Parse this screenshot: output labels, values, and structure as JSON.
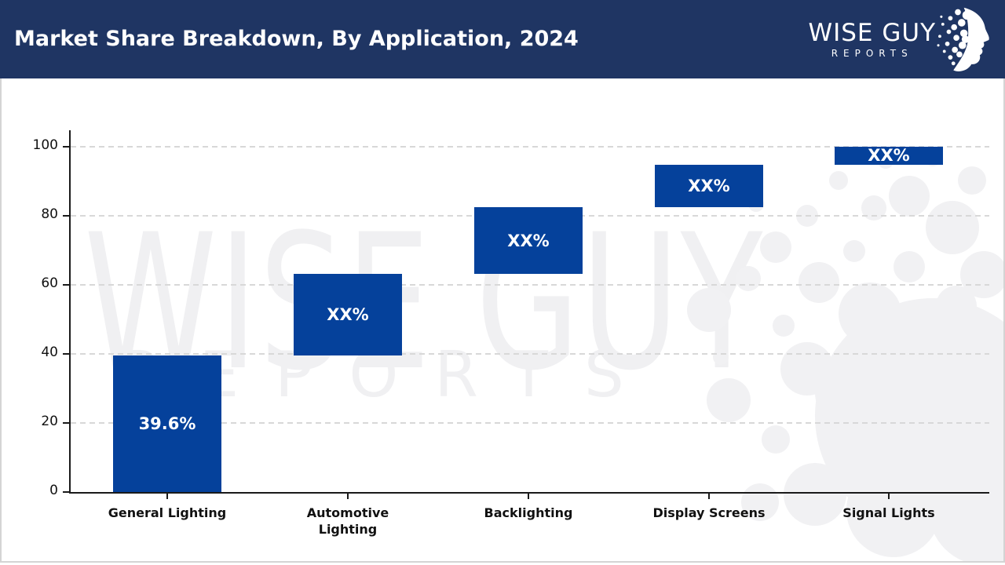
{
  "header": {
    "title": "Market Share Breakdown, By Application, 2024",
    "background_color": "#1F3563",
    "logo": {
      "brand_line1": "WISE GUY",
      "brand_line2": "REPORTS",
      "head_icon": "dotted-head-profile"
    }
  },
  "watermark": {
    "line1": "WISE GUY",
    "line2": "REPORTS"
  },
  "chart_data": {
    "type": "bar",
    "variant": "floating-waterfall",
    "title": "Market Share Breakdown, By Application, 2024",
    "categories": [
      [
        "General Lighting"
      ],
      [
        "Automotive",
        "Lighting"
      ],
      [
        "Backlighting"
      ],
      [
        "Display Screens"
      ],
      [
        "Signal Lights"
      ]
    ],
    "segments": [
      {
        "category": "General Lighting",
        "start": 0,
        "end": 39.6,
        "value": 39.6,
        "label": "39.6%"
      },
      {
        "category": "Automotive Lighting",
        "start": 39.6,
        "end": 63.2,
        "value": 23.6,
        "label": "XX%"
      },
      {
        "category": "Backlighting",
        "start": 63.2,
        "end": 82.4,
        "value": 19.2,
        "label": "XX%"
      },
      {
        "category": "Display Screens",
        "start": 82.4,
        "end": 94.8,
        "value": 12.4,
        "label": "XX%"
      },
      {
        "category": "Signal Lights",
        "start": 94.8,
        "end": 100,
        "value": 5.2,
        "label": "XX%"
      }
    ],
    "ylim": [
      0,
      104
    ],
    "yticks": [
      0,
      20,
      40,
      60,
      80,
      100
    ],
    "grid": {
      "horizontal": true,
      "style": "dashed",
      "color": "#d8d8d8"
    },
    "legend": "none",
    "bar_color": "#05419B",
    "bar_label_color": "#ffffff",
    "axis_color": "#1a1a1a"
  }
}
